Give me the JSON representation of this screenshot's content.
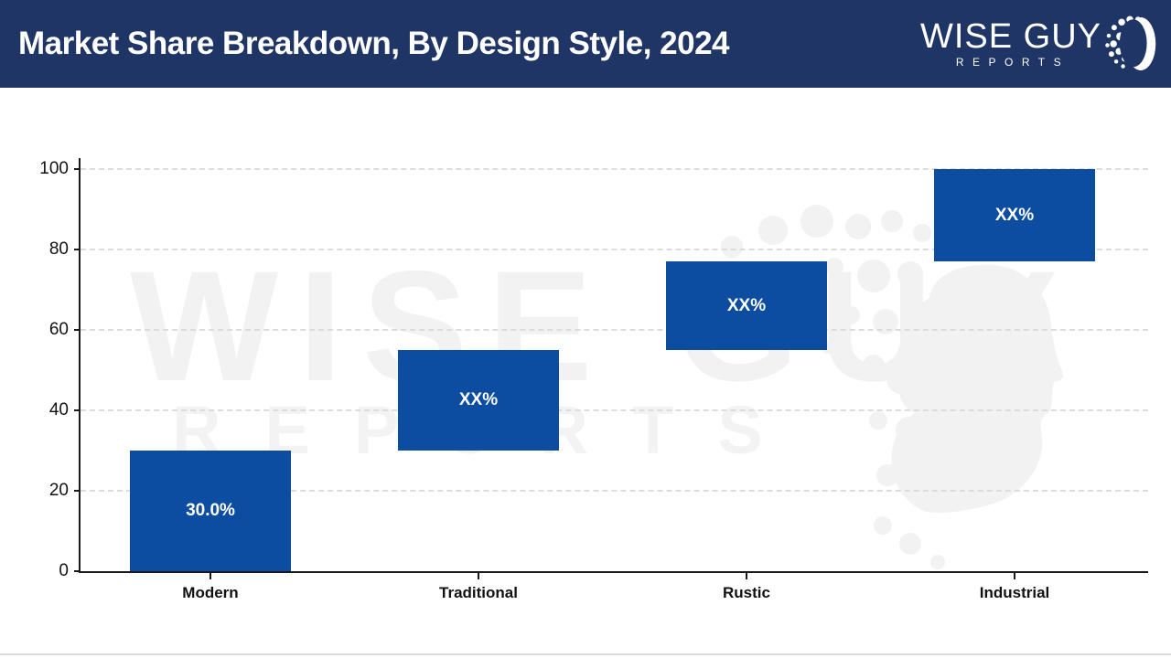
{
  "header": {
    "title": "Market Share Breakdown, By Design Style, 2024",
    "logo": {
      "line1": "WISE GUY",
      "line2": "REPORTS"
    },
    "bg_color": "#1f3566"
  },
  "watermark": {
    "line1": "WISE GUY",
    "line2": "REPORTS"
  },
  "colors": {
    "bar": "#0c4da2",
    "bar_label": "#ffffff",
    "grid": "#dcdcdc",
    "axis": "#1a1a1a",
    "header_bg": "#1f3566",
    "watermark": "#f2f2f2"
  },
  "chart_data": {
    "type": "bar",
    "subtype": "floating-waterfall",
    "title": "Market Share Breakdown, By Design Style, 2024",
    "categories": [
      "Modern",
      "Traditional",
      "Rustic",
      "Industrial"
    ],
    "segments": [
      {
        "category": "Modern",
        "start": 0,
        "end": 30,
        "label": "30.0%"
      },
      {
        "category": "Traditional",
        "start": 30,
        "end": 55,
        "label": "XX%"
      },
      {
        "category": "Rustic",
        "start": 55,
        "end": 77,
        "label": "XX%"
      },
      {
        "category": "Industrial",
        "start": 77,
        "end": 100,
        "label": "XX%"
      }
    ],
    "ylim": [
      0,
      100
    ],
    "yticks": [
      0,
      20,
      40,
      60,
      80,
      100
    ],
    "grid": "horizontal-dashed",
    "legend": "none",
    "bar_color": "#0c4da2"
  }
}
